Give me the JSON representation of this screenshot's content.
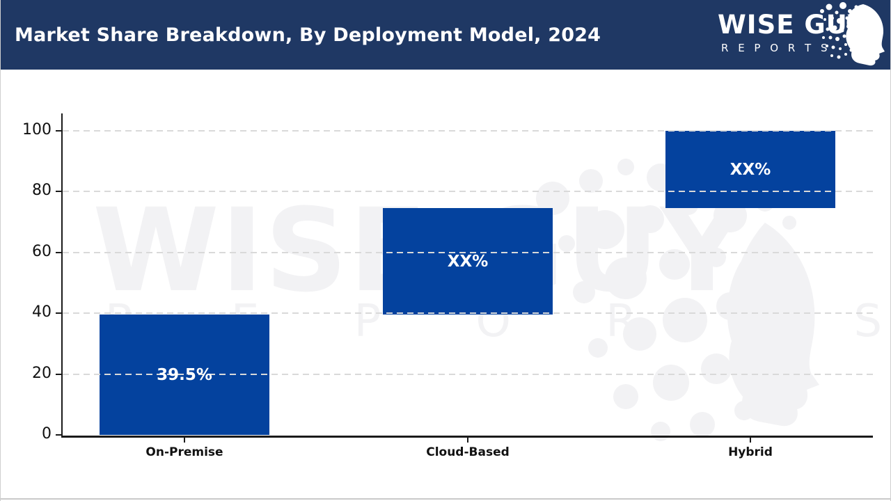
{
  "header": {
    "title": "Market Share Breakdown, By Deployment Model, 2024",
    "logo": {
      "wordmark": "WISE GUY",
      "subtext": "R E P O R T S"
    }
  },
  "watermark": {
    "line1": "WISE GUY",
    "line2": "R E P O R T S"
  },
  "colors": {
    "header_bg": "#1f3864",
    "page_bg": "#ffffff",
    "bar": "#04429e",
    "grid": "#d9d9d9",
    "watermark": "#f2f2f4",
    "axis": "#1a1a1a",
    "bar_label": "#ffffff",
    "bottom_rule": "#c9c9c9"
  },
  "chart_data": {
    "type": "bar",
    "variant": "waterfall",
    "title": "Market Share Breakdown, By Deployment Model, 2024",
    "categories": [
      "On-Premise",
      "Cloud-Based",
      "Hybrid"
    ],
    "segments": [
      {
        "category": "On-Premise",
        "start": 0,
        "end": 39.5,
        "value": 39.5,
        "label": "39.5%"
      },
      {
        "category": "Cloud-Based",
        "start": 39.5,
        "end": 74.5,
        "value": 35,
        "label": "XX%"
      },
      {
        "category": "Hybrid",
        "start": 74.5,
        "end": 100,
        "value": 25.5,
        "label": "XX%"
      }
    ],
    "yticks": [
      0,
      20,
      40,
      60,
      80,
      100
    ],
    "ylim": [
      0,
      105
    ],
    "xlabel": "",
    "ylabel": "",
    "grid": {
      "axis": "y",
      "style": "dashed",
      "color": "#d9d9d9",
      "drawn_over_bars": true
    },
    "legend": null,
    "bar_color": "#04429e",
    "bar_label_color": "#ffffff"
  }
}
